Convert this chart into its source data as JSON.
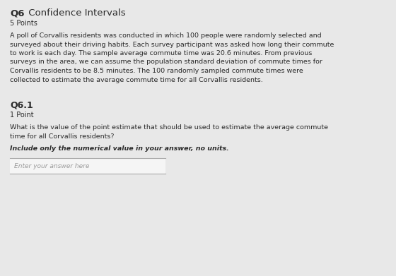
{
  "bg_color": "#e8e8e8",
  "title_bold": "Q6",
  "title_normal": " Confidence Intervals",
  "points_line": "5 Points",
  "body_text": "A poll of Corvallis residents was conducted in which 100 people were randomly selected and\nsurveyed about their driving habits. Each survey participant was asked how long their commute\nto work is each day. The sample average commute time was 20.6 minutes. From previous\nsurveys in the area, we can assume the population standard deviation of commute times for\nCorvallis residents to be 8.5 minutes. The 100 randomly sampled commute times were\ncollected to estimate the average commute time for all Corvallis residents.",
  "sub_title_bold": "Q6.1",
  "sub_points": "1 Point",
  "question_text": "What is the value of the point estimate that should be used to estimate the average commute\ntime for all Corvallis residents?",
  "italic_bold_text": "Include only the numerical value in your answer, no units.",
  "placeholder_text": "Enter your answer here",
  "input_box_color": "#f5f5f5",
  "text_color": "#2a2a2a",
  "gray_text_color": "#999999",
  "title_fontsize": 9.5,
  "points_fontsize": 7.0,
  "body_fontsize": 6.8,
  "sub_title_fontsize": 9.0,
  "question_fontsize": 6.8,
  "italic_fontsize": 6.8
}
